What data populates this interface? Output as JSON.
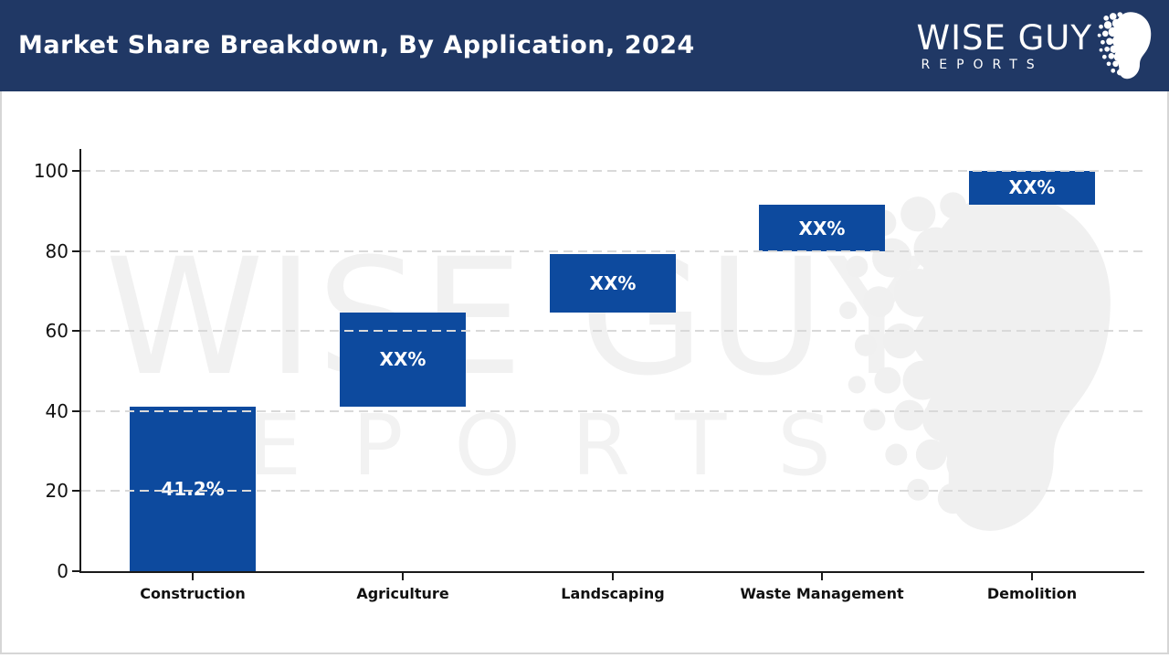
{
  "header": {
    "title": "Market Share Breakdown, By Application, 2024",
    "bg_color": "#203865",
    "logo": {
      "primary": "WISE GUY",
      "secondary": "REPORTS"
    }
  },
  "watermark": {
    "primary": "WISE GUY",
    "secondary": "REPORTS"
  },
  "chart_data": {
    "type": "bar",
    "subtype": "waterfall",
    "title": "Market Share Breakdown, By Application, 2024",
    "categories": [
      "Construction",
      "Agriculture",
      "Landscaping",
      "Waste Management",
      "Demolition"
    ],
    "segments": [
      {
        "category": "Construction",
        "start": 0,
        "end": 41.2,
        "label": "41.2%"
      },
      {
        "category": "Agriculture",
        "start": 41.2,
        "end": 64.6,
        "label": "XX%"
      },
      {
        "category": "Landscaping",
        "start": 64.6,
        "end": 79.2,
        "label": "XX%"
      },
      {
        "category": "Waste Management",
        "start": 79.8,
        "end": 91.6,
        "label": "XX%"
      },
      {
        "category": "Demolition",
        "start": 91.6,
        "end": 100,
        "label": "XX%"
      }
    ],
    "ylim": [
      0,
      100
    ],
    "yticks": [
      0,
      20,
      40,
      60,
      80,
      100
    ],
    "xlabel": "",
    "ylabel": "",
    "grid": "horizontal-dashed",
    "legend": "none",
    "bar_color": "#0d4a9e",
    "bar_label_color": "#ffffff"
  }
}
